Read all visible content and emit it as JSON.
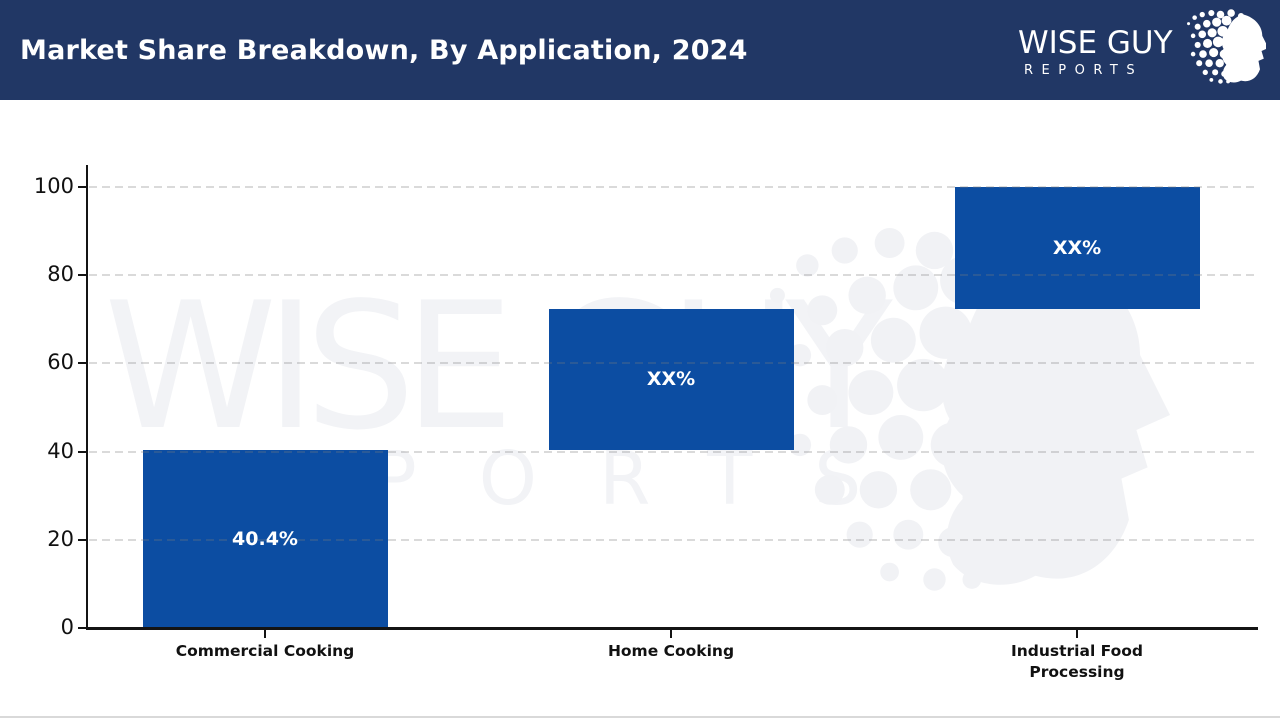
{
  "header": {
    "title": "Market Share Breakdown, By Application, 2024",
    "bg_color": "#213765",
    "logo": {
      "line1": "WISE GUY",
      "line2": "REPORTS"
    }
  },
  "watermark": {
    "line1": "WISE GUY",
    "line2": "REPORTS"
  },
  "chart_data": {
    "type": "bar",
    "subtype": "stacked-range-columns",
    "title": "Market Share Breakdown, By Application, 2024",
    "xlabel": "",
    "ylabel": "",
    "categories": [
      "Commercial Cooking",
      "Home Cooking",
      "Industrial Food Processing"
    ],
    "series": [
      {
        "name": "Commercial Cooking",
        "start": 0,
        "end": 40.4,
        "label": "40.4%"
      },
      {
        "name": "Home Cooking",
        "start": 40.4,
        "end": 72.4,
        "label": "XX%"
      },
      {
        "name": "Industrial Food Processing",
        "start": 72.4,
        "end": 100,
        "label": "XX%"
      }
    ],
    "ylim": [
      0,
      100
    ],
    "yticks": [
      0,
      20,
      40,
      60,
      80,
      100
    ],
    "bar_color": "#0c4da2",
    "grid": true,
    "gridline_style": "dashed",
    "legend": false
  }
}
